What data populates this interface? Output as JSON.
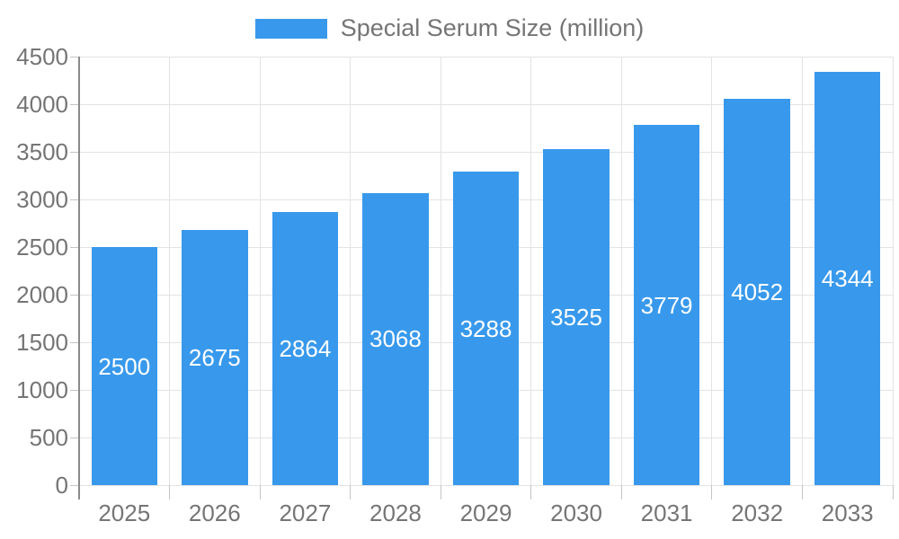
{
  "chart_data": {
    "type": "bar",
    "title": "",
    "legend_label": "Special Serum Size (million)",
    "legend_position": "top",
    "categories": [
      "2025",
      "2026",
      "2027",
      "2028",
      "2029",
      "2030",
      "2031",
      "2032",
      "2033"
    ],
    "values": [
      2500,
      2675,
      2864,
      3068,
      3288,
      3525,
      3779,
      4052,
      4344
    ],
    "xlabel": "",
    "ylabel": "",
    "ylim": [
      0,
      4500
    ],
    "ytick_step": 500,
    "yticks": [
      0,
      500,
      1000,
      1500,
      2000,
      2500,
      3000,
      3500,
      4000,
      4500
    ],
    "grid": true,
    "bar_label_position": "center",
    "colors": {
      "bar": "#3899EC",
      "bar_label": "#FFFFFF",
      "axis_text": "#757575",
      "gridline": "#E3E3E3",
      "axis_line": "#8A8A8A",
      "tick": "#C4C4C4",
      "background": "#FFFFFF"
    }
  }
}
